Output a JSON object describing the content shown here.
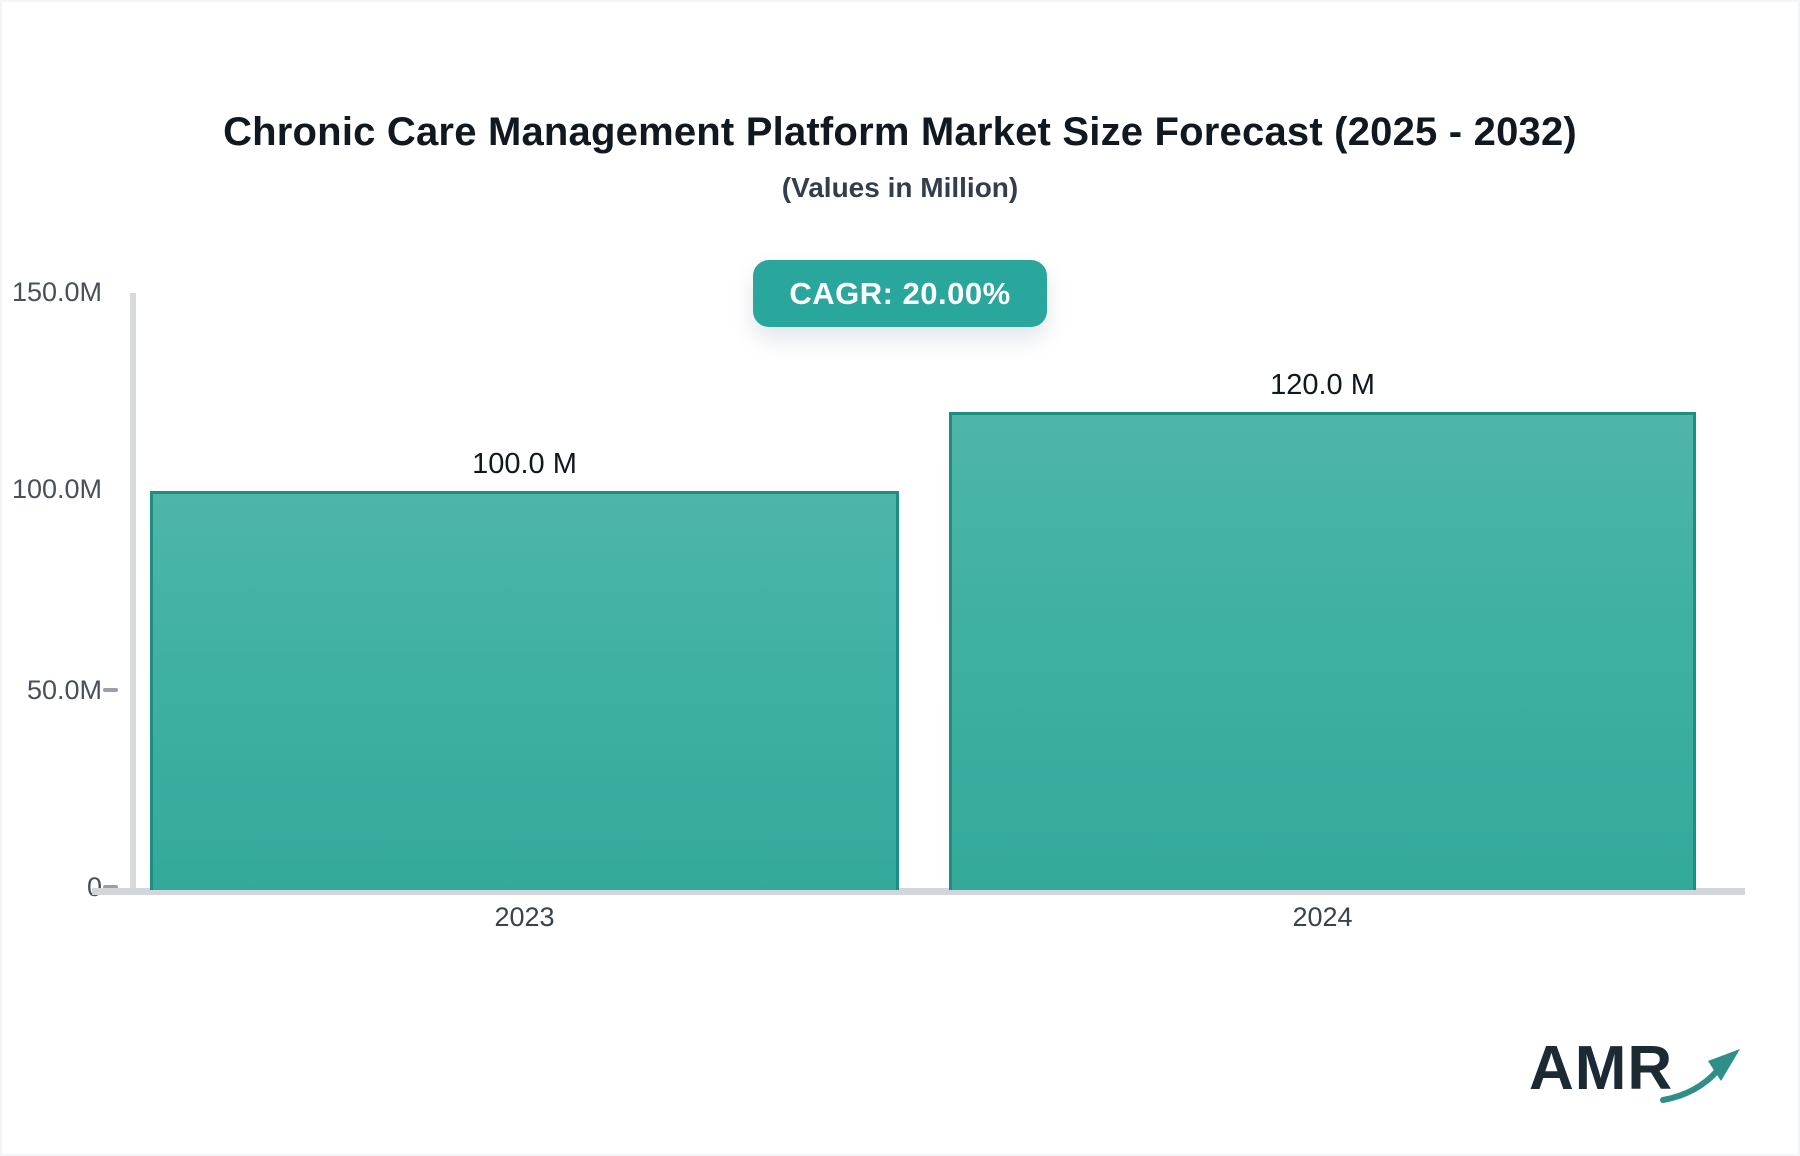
{
  "header": {
    "title": "Chronic Care Management Platform Market Size Forecast (2025 - 2032)",
    "subtitle": "(Values in Million)",
    "cagr_label": "CAGR: 20.00%"
  },
  "chart_data": {
    "type": "bar",
    "title": "Chronic Care Management Platform Market Size Forecast (2025 - 2032)",
    "subtitle": "(Values in Million)",
    "categories": [
      "2023",
      "2024"
    ],
    "values": [
      100.0,
      120.0
    ],
    "bar_labels": [
      "100.0 M",
      "120.0 M"
    ],
    "cagr_percent": "20.00%",
    "ylim": [
      0,
      150
    ],
    "yticks": [
      150,
      100,
      50,
      0
    ],
    "ytick_labels": [
      "150.0M",
      "100.0M",
      "50.0M",
      "0"
    ],
    "xlabel": "",
    "ylabel": "",
    "grid": false,
    "legend": false
  },
  "colors": {
    "accent_teal": "#2aa79c",
    "bar_fill_top": "#4fb5ab",
    "bar_fill_bottom": "#33a99c",
    "bar_border": "#1e8e85",
    "axis_line": "#d6d9dd",
    "tick": "#9aa0a7",
    "title_text": "#101820",
    "axis_text": "#47505c",
    "logo_dark": "#1b2a33",
    "logo_teal": "#2e8f89"
  },
  "footer": {
    "logo_text": "AMR"
  }
}
